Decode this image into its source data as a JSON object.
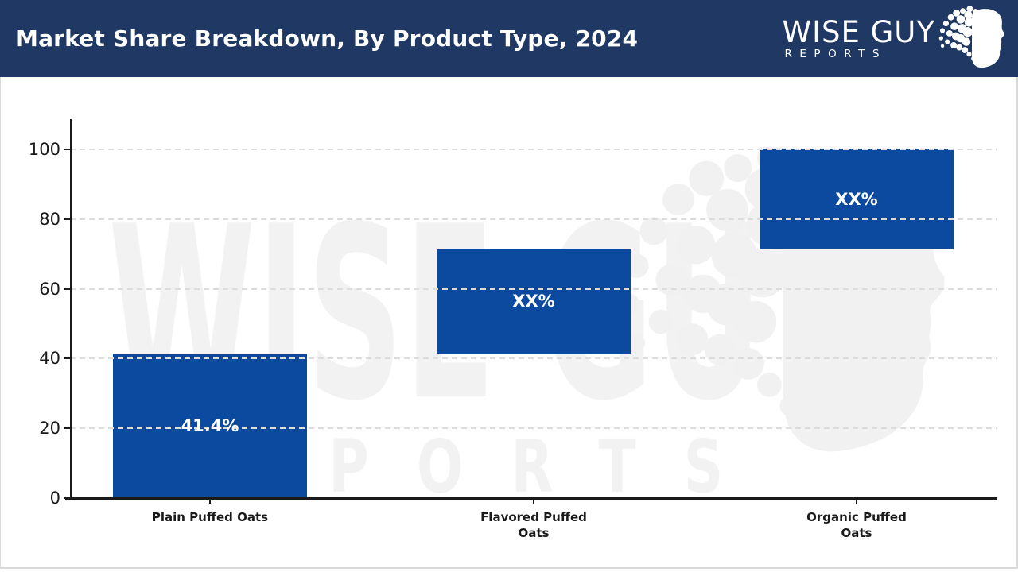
{
  "header": {
    "title": "Market Share Breakdown, By Product Type, 2024",
    "logo": {
      "line1": "WISE GUY",
      "line2": "REPORTS"
    }
  },
  "watermark": {
    "line1": "WISE GUY",
    "line2": "REPORTS"
  },
  "chart_data": {
    "type": "bar",
    "subtype": "waterfall",
    "title": "Market Share Breakdown, By Product Type, 2024",
    "categories": [
      "Plain Puffed Oats",
      "Flavored Puffed Oats",
      "Organic Puffed Oats"
    ],
    "category_lines": [
      [
        "Plain Puffed Oats"
      ],
      [
        "Flavored Puffed",
        "Oats"
      ],
      [
        "Organic Puffed",
        "Oats"
      ]
    ],
    "segments": [
      {
        "category": "Plain Puffed Oats",
        "start": 0,
        "end": 41.4,
        "label": "41.4%"
      },
      {
        "category": "Flavored Puffed Oats",
        "start": 41.4,
        "end": 71.4,
        "label": "XX%"
      },
      {
        "category": "Organic Puffed Oats",
        "start": 71.4,
        "end": 100,
        "label": "XX%"
      }
    ],
    "values_shown": [
      "41.4%",
      "XX%",
      "XX%"
    ],
    "ylim": [
      0,
      100
    ],
    "yticks": [
      0,
      20,
      40,
      60,
      80,
      100
    ],
    "grid": "horizontal dashed, drawn over bars",
    "legend": "none",
    "bar_color": "#0b4a9e",
    "bar_label_color": "#ffffff"
  },
  "colors": {
    "header_bg": "#1f3864",
    "bar": "#0b4a9e",
    "grid": "#dcdcdc",
    "axis": "#1a1a1a",
    "watermark": "#f2f2f2",
    "frame": "#d9d9d9"
  }
}
